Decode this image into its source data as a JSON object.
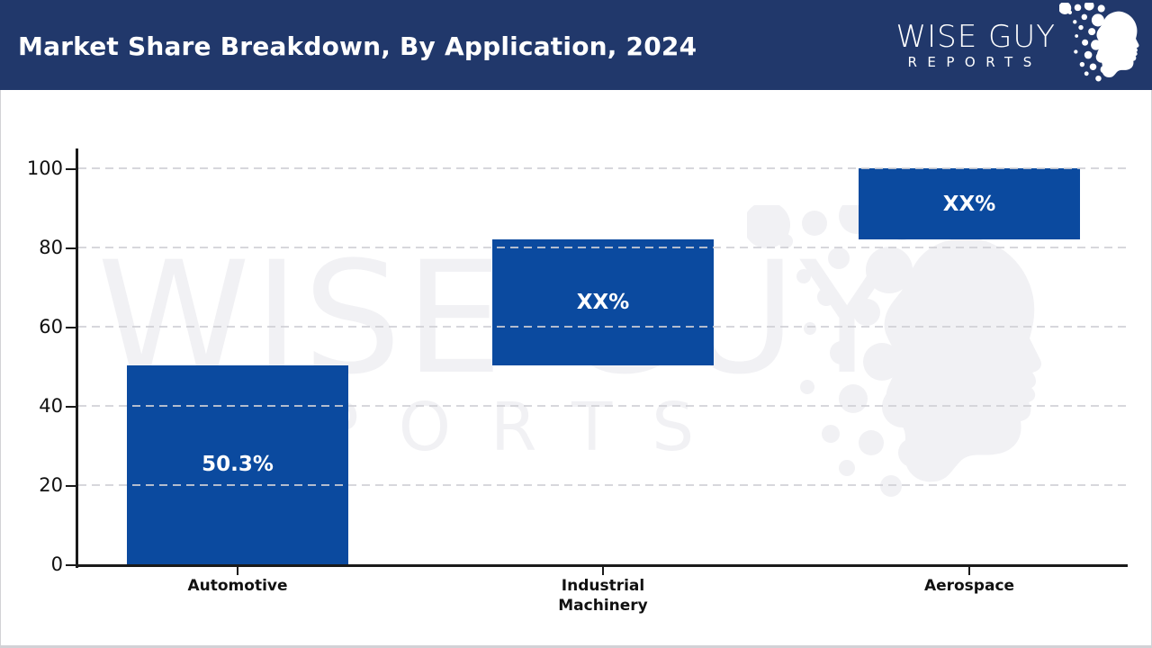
{
  "header": {
    "title": "Market Share Breakdown, By Application, 2024",
    "bg_color": "#21386B",
    "logo_line1": "WISE GUY",
    "logo_line2": "REPORTS"
  },
  "watermark": {
    "line1": "WISE GUY",
    "line2": "REPORTS"
  },
  "chart_data": {
    "type": "bar",
    "variant": "floating-segment-waterfall",
    "title": "Market Share Breakdown, By Application, 2024",
    "categories": [
      "Automotive",
      "Industrial Machinery",
      "Aerospace"
    ],
    "bars": [
      {
        "label_lines": [
          "Automotive"
        ],
        "base": 0,
        "top": 50.3,
        "value_label": "50.3%"
      },
      {
        "label_lines": [
          "Industrial",
          "Machinery"
        ],
        "base": 50.3,
        "top": 82,
        "value_label": "XX%"
      },
      {
        "label_lines": [
          "Aerospace"
        ],
        "base": 82,
        "top": 100,
        "value_label": "XX%"
      }
    ],
    "yticks": [
      0,
      20,
      40,
      60,
      80,
      100
    ],
    "ylim": [
      0,
      100
    ],
    "grid": "horizontal-dashed",
    "legend": "none",
    "bar_color": "#0B4A9F",
    "value_label_color": "#FFFFFF",
    "axis_color": "#1A1A1A",
    "gridline_color": "#D9D9D9",
    "background_color": "#FFFFFF"
  }
}
